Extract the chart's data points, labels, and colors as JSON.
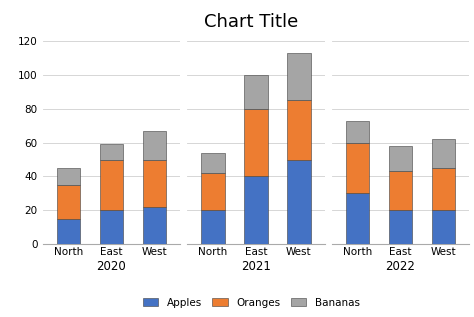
{
  "title": "Chart Title",
  "years": [
    "2020",
    "2021",
    "2022"
  ],
  "regions": [
    "North",
    "East",
    "West"
  ],
  "series": {
    "Apples": {
      "2020": [
        15,
        20,
        22
      ],
      "2021": [
        20,
        40,
        50
      ],
      "2022": [
        30,
        20,
        20
      ]
    },
    "Oranges": {
      "2020": [
        20,
        30,
        28
      ],
      "2021": [
        22,
        40,
        35
      ],
      "2022": [
        30,
        23,
        25
      ]
    },
    "Bananas": {
      "2020": [
        10,
        9,
        17
      ],
      "2021": [
        12,
        20,
        28
      ],
      "2022": [
        13,
        15,
        17
      ]
    }
  },
  "colors": {
    "Apples": "#4472C4",
    "Oranges": "#ED7D31",
    "Bananas": "#A5A5A5"
  },
  "ylim": [
    0,
    120
  ],
  "yticks": [
    0,
    20,
    40,
    60,
    80,
    100,
    120
  ],
  "bar_width": 0.55,
  "legend_labels": [
    "Apples",
    "Oranges",
    "Bananas"
  ],
  "title_fontsize": 13,
  "tick_fontsize": 7.5,
  "label_fontsize": 8.5,
  "legend_fontsize": 7.5
}
